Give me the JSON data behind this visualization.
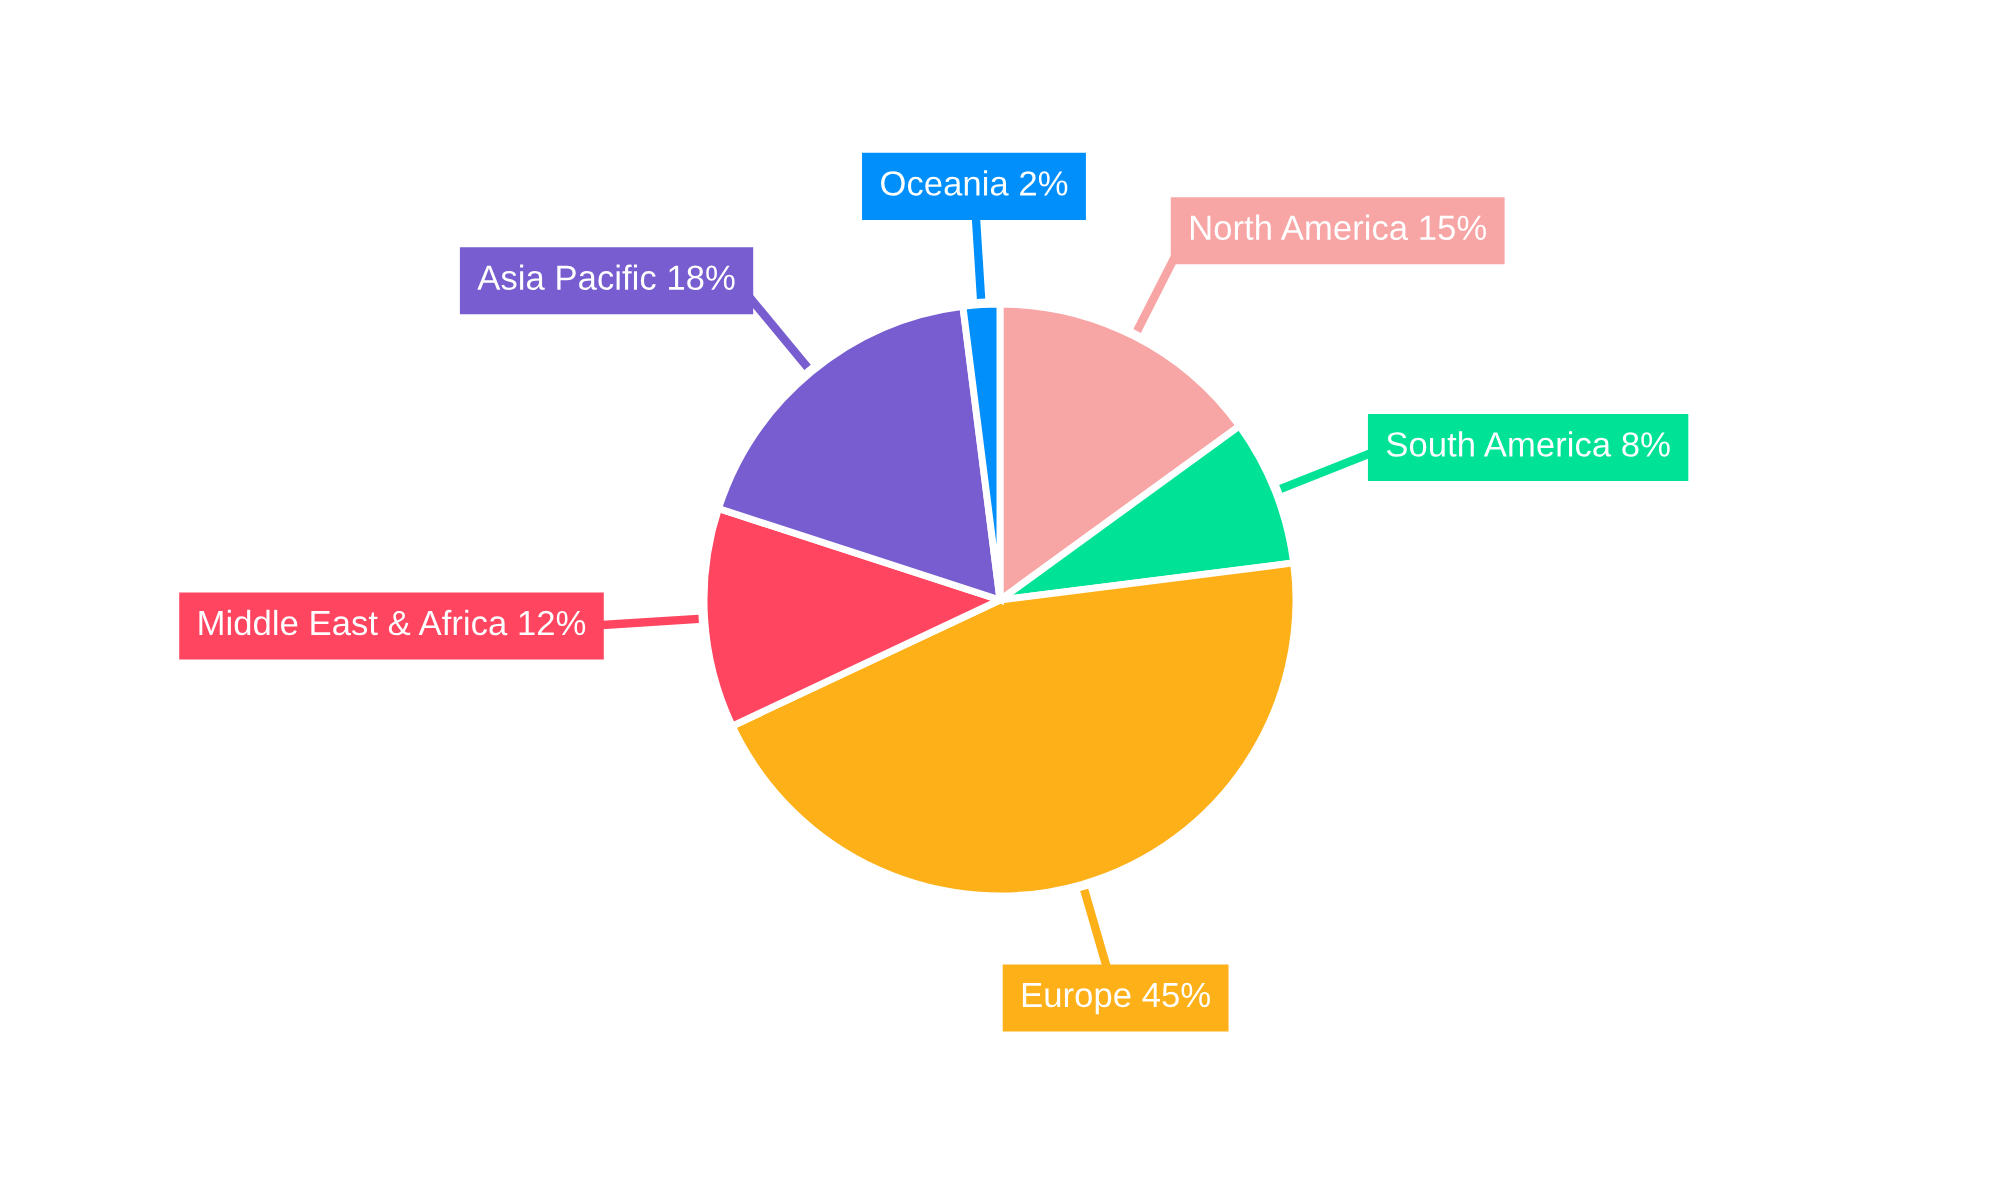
{
  "chart_data": {
    "type": "pie",
    "categories": [
      "North America",
      "South America",
      "Europe",
      "Middle East & Africa",
      "Asia Pacific",
      "Oceania"
    ],
    "values": [
      15,
      8,
      45,
      12,
      18,
      2
    ],
    "value_labels": [
      "15%",
      "8%",
      "45%",
      "12%",
      "18%",
      "2%"
    ],
    "colors": [
      "#f8a5a6",
      "#00e396",
      "#feb019",
      "#ff4560",
      "#775dd0",
      "#008ffb"
    ],
    "legend": false
  }
}
